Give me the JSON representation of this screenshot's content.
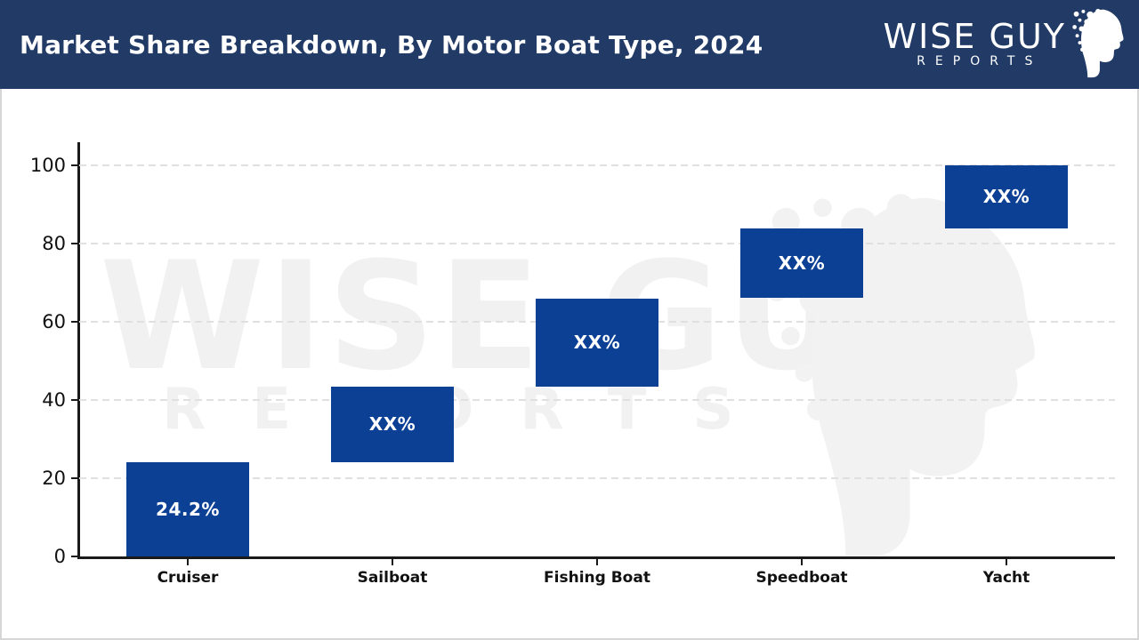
{
  "header": {
    "title": "Market Share Breakdown, By Motor Boat Type, 2024",
    "logo": {
      "line1": "WISE GUY",
      "line2": "REPORTS"
    }
  },
  "watermark": {
    "line1": "WISE GUY",
    "line2": "REPORTS"
  },
  "colors": {
    "header_bg": "#213a66",
    "bar": "#0b4095",
    "axis": "#1a1a1a",
    "grid": "#e0e0e0",
    "watermark_text": "#f1f1f1",
    "bar_label": "#ffffff"
  },
  "chart_data": {
    "type": "bar",
    "subtype": "waterfall-floating-bars",
    "title": "Market Share Breakdown, By Motor Boat Type, 2024",
    "categories": [
      "Cruiser",
      "Sailboat",
      "Fishing Boat",
      "Speedboat",
      "Yacht"
    ],
    "segments": [
      {
        "category": "Cruiser",
        "start": 0,
        "end": 24.2,
        "label": "24.2%"
      },
      {
        "category": "Sailboat",
        "start": 24.2,
        "end": 43.3,
        "label": "XX%"
      },
      {
        "category": "Fishing Boat",
        "start": 43.5,
        "end": 66.0,
        "label": "XX%"
      },
      {
        "category": "Speedboat",
        "start": 66.2,
        "end": 83.8,
        "label": "XX%"
      },
      {
        "category": "Yacht",
        "start": 83.9,
        "end": 100,
        "label": "XX%"
      }
    ],
    "xlabel": "",
    "ylabel": "",
    "ylim": [
      0,
      105
    ],
    "yticks": [
      0,
      20,
      40,
      60,
      80,
      100
    ],
    "grid": "horizontal-dashed",
    "legend": "none"
  }
}
